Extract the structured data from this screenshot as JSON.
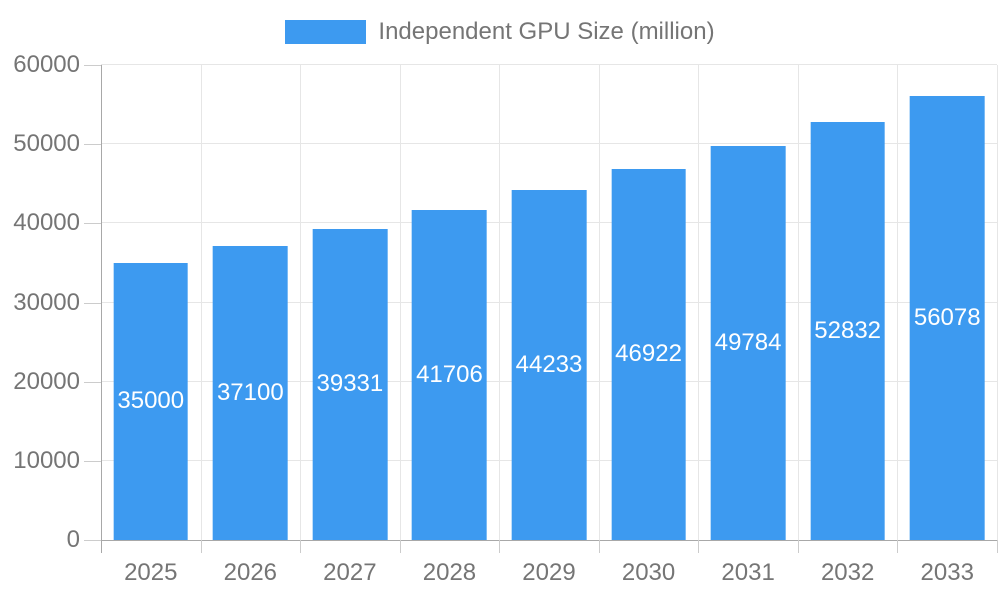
{
  "chart_data": {
    "type": "bar",
    "title": "",
    "legend": {
      "label": "Independent GPU Size (million)",
      "position": "top"
    },
    "categories": [
      "2025",
      "2026",
      "2027",
      "2028",
      "2029",
      "2030",
      "2031",
      "2032",
      "2033"
    ],
    "series": [
      {
        "name": "Independent GPU Size (million)",
        "values": [
          35000,
          37100,
          39331,
          41706,
          44233,
          46922,
          49784,
          52832,
          56078
        ]
      }
    ],
    "data_labels": [
      "35000",
      "37100",
      "39331",
      "41706",
      "44233",
      "46922",
      "49784",
      "52832",
      "56078"
    ],
    "xlabel": "",
    "ylabel": "",
    "ylim": [
      0,
      60000
    ],
    "ytick_interval": 10000,
    "yticks": [
      "0",
      "10000",
      "20000",
      "30000",
      "40000",
      "50000",
      "60000"
    ],
    "grid": true,
    "legend_position": "top-center",
    "colors": {
      "bar": "#3d9af0",
      "bar_label": "#ffffff",
      "axis_text": "#757575",
      "grid_line": "#e6e6e6",
      "axis_line": "#a8a8a8",
      "tick_line": "#cccccc",
      "background": "#ffffff"
    }
  }
}
